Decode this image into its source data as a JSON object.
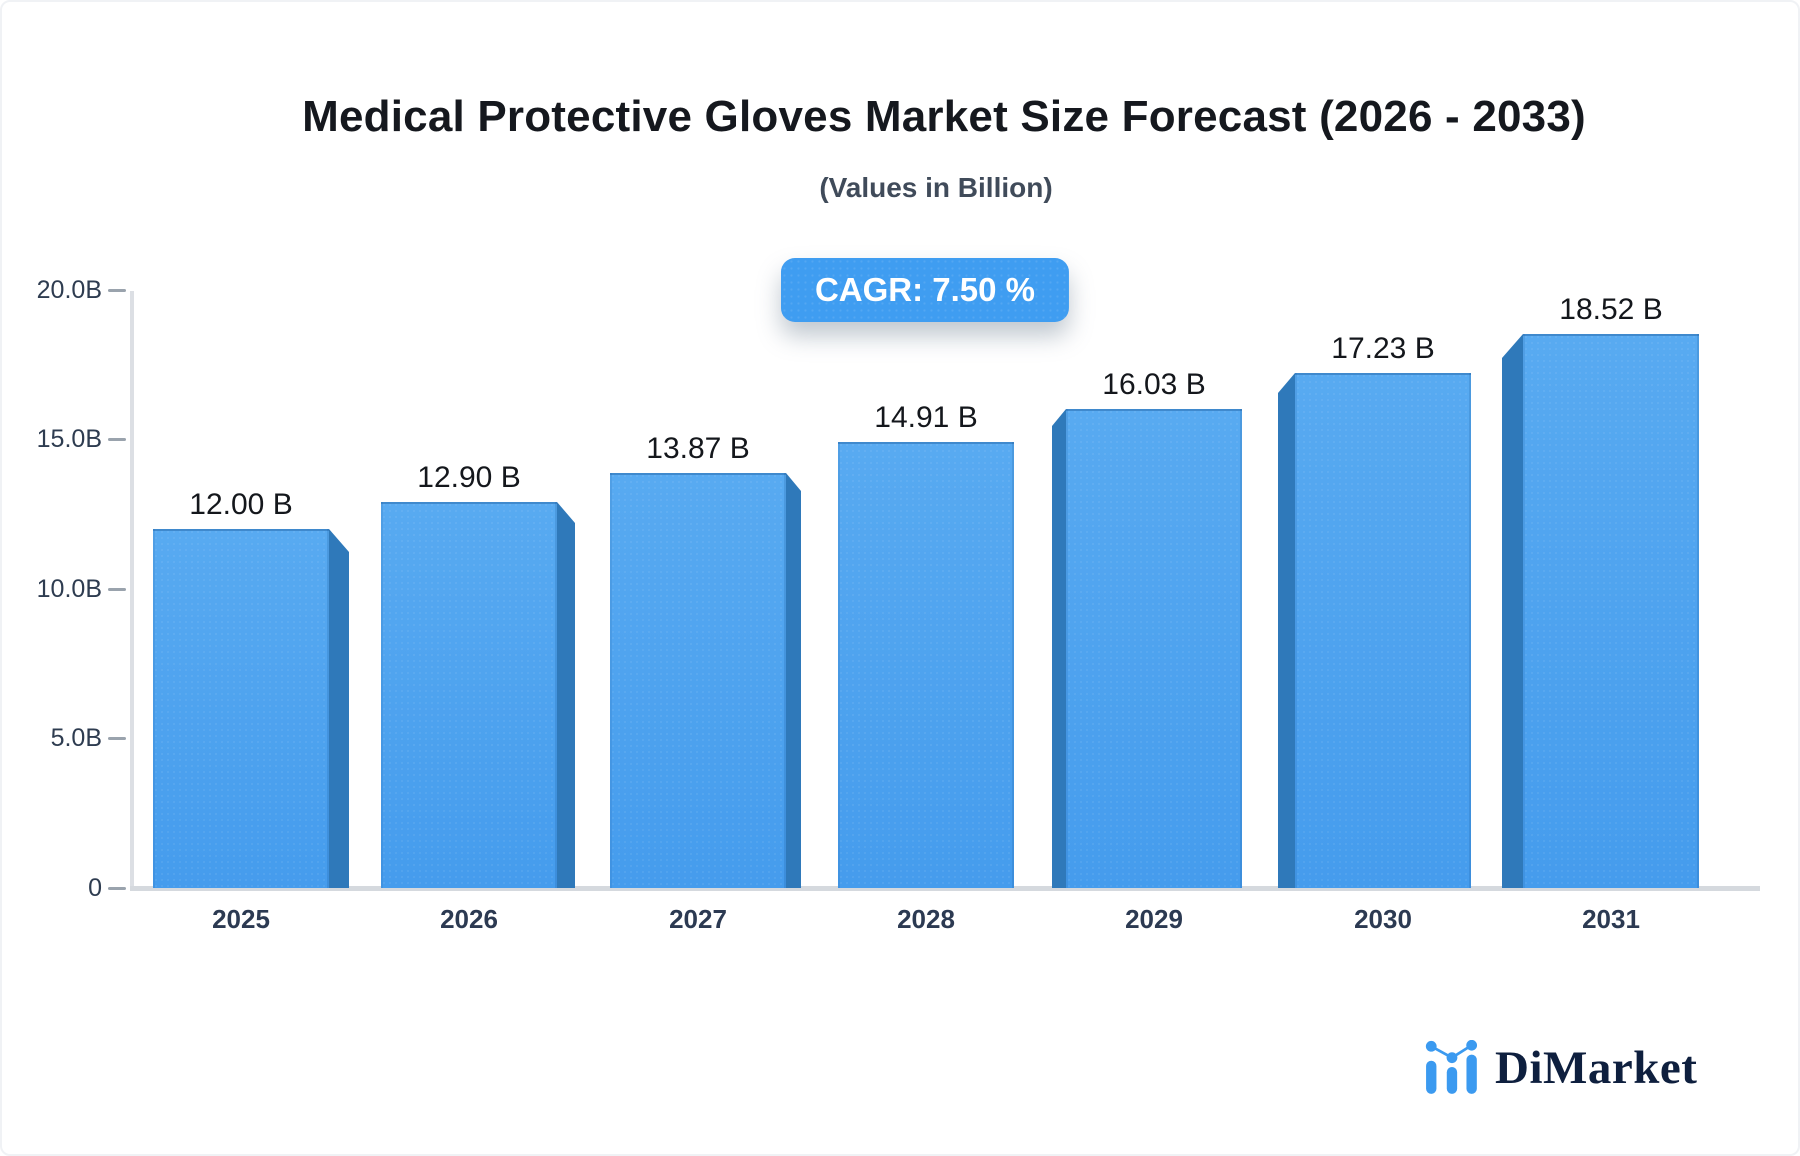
{
  "title": "Medical Protective Gloves Market Size Forecast (2026 - 2033)",
  "subtitle": "(Values in Billion)",
  "badge": {
    "label": "CAGR: 7.50 %"
  },
  "chart_data": {
    "type": "bar",
    "title": "Medical Protective Gloves Market Size Forecast (2026 - 2033)",
    "subtitle": "(Values in Billion)",
    "cagr": "7.50 %",
    "categories": [
      "2025",
      "2026",
      "2027",
      "2028",
      "2029",
      "2030",
      "2031"
    ],
    "values": [
      12.0,
      12.9,
      13.87,
      14.91,
      16.03,
      17.23,
      18.52
    ],
    "bar_labels": [
      "12.00 B",
      "12.90 B",
      "13.87 B",
      "14.91 B",
      "16.03 B",
      "17.23 B",
      "18.52 B"
    ],
    "xlabel": "",
    "ylabel": "",
    "ylim": [
      0,
      20
    ],
    "yticks": [
      {
        "value": 20,
        "label": "20.0B"
      },
      {
        "value": 15,
        "label": "15.0B"
      },
      {
        "value": 10,
        "label": "10.0B"
      },
      {
        "value": 5,
        "label": "5.0B"
      },
      {
        "value": 0,
        "label": "0"
      }
    ],
    "grid": false,
    "legend": false
  },
  "logo": {
    "text": "DiMarket"
  },
  "colors": {
    "bar_face_top": "#58aaf1",
    "bar_face_bottom": "#459ced",
    "bar_side": "#2f79ba",
    "badge_bg": "#3f9df1",
    "axis": "#d5d9de",
    "tick": "#9aa3ad",
    "label_dark": "#2c3a52",
    "logo_navy": "#0e1f3e",
    "logo_blue": "#3b9af0"
  }
}
